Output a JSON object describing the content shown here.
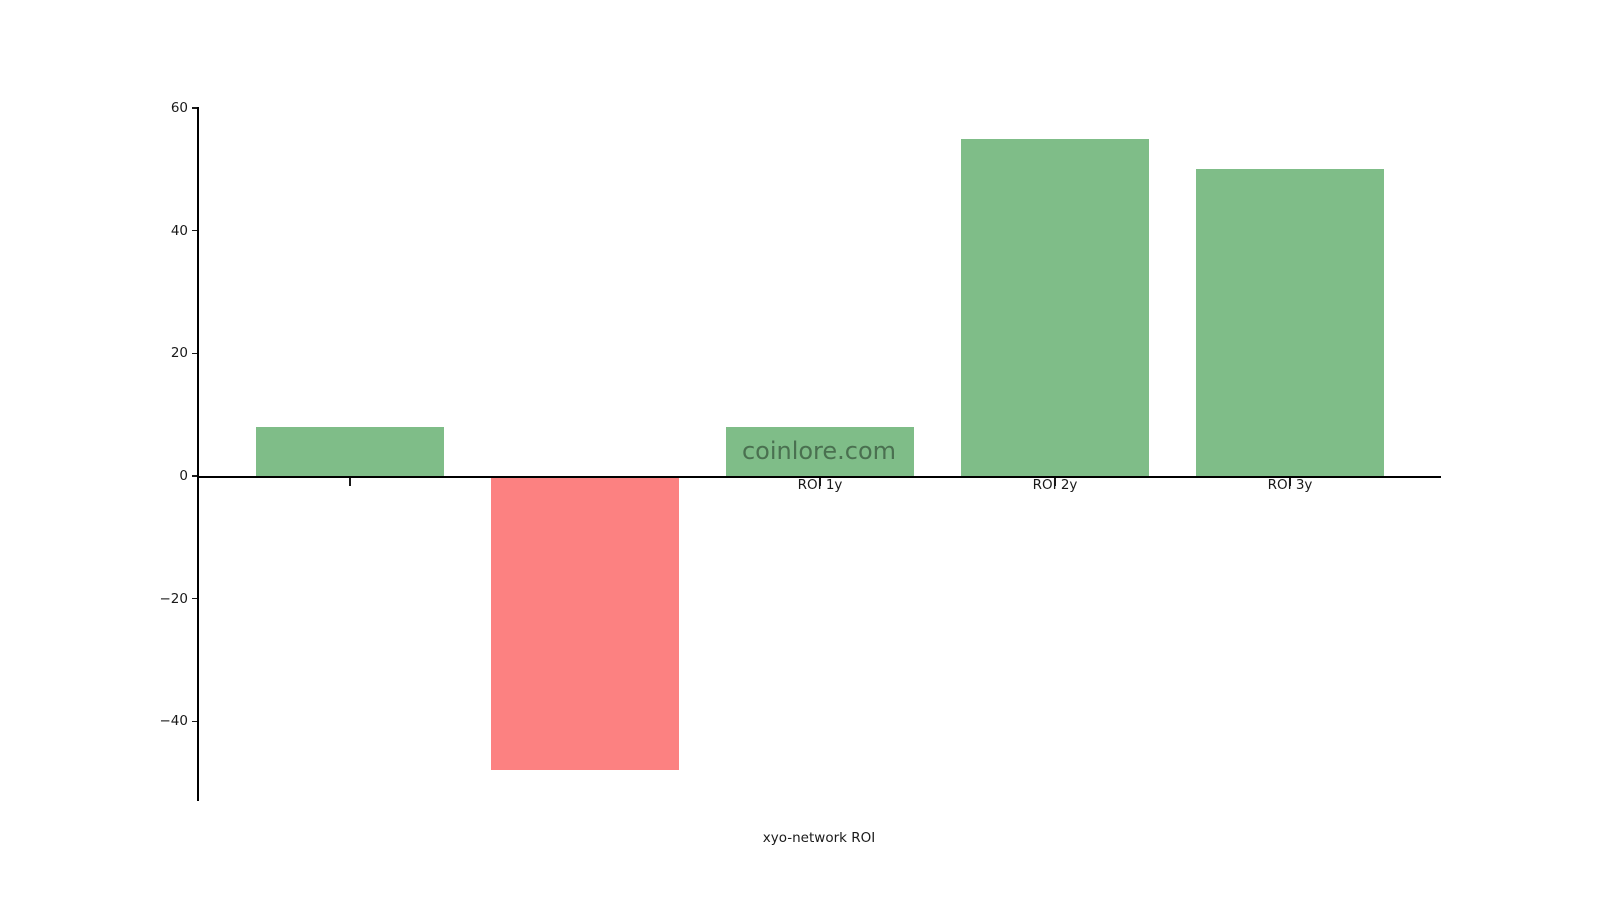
{
  "watermark": {
    "text": "coinlore.com",
    "color": "#4a7050"
  },
  "chart_data": {
    "type": "bar",
    "title": "xyo-network ROI",
    "title_position": "bottom",
    "categories": [
      "",
      "",
      "ROI 1y",
      "ROI 2y",
      "ROI 3y"
    ],
    "values": [
      8,
      -48,
      8,
      55,
      50
    ],
    "positive_color": "#7fbd88",
    "negative_color": "#fc8181",
    "y_ticks": [
      {
        "value": 60,
        "label": "60"
      },
      {
        "value": 40,
        "label": "40"
      },
      {
        "value": 20,
        "label": "20"
      },
      {
        "value": 0,
        "label": "0"
      },
      {
        "value": -20,
        "label": "−20"
      },
      {
        "value": -40,
        "label": "−40"
      }
    ],
    "ylim": [
      -53,
      60.2
    ],
    "grid": false,
    "legend": "none",
    "axis_color": "#000000",
    "tick_label_color": "#1a1a1a"
  }
}
